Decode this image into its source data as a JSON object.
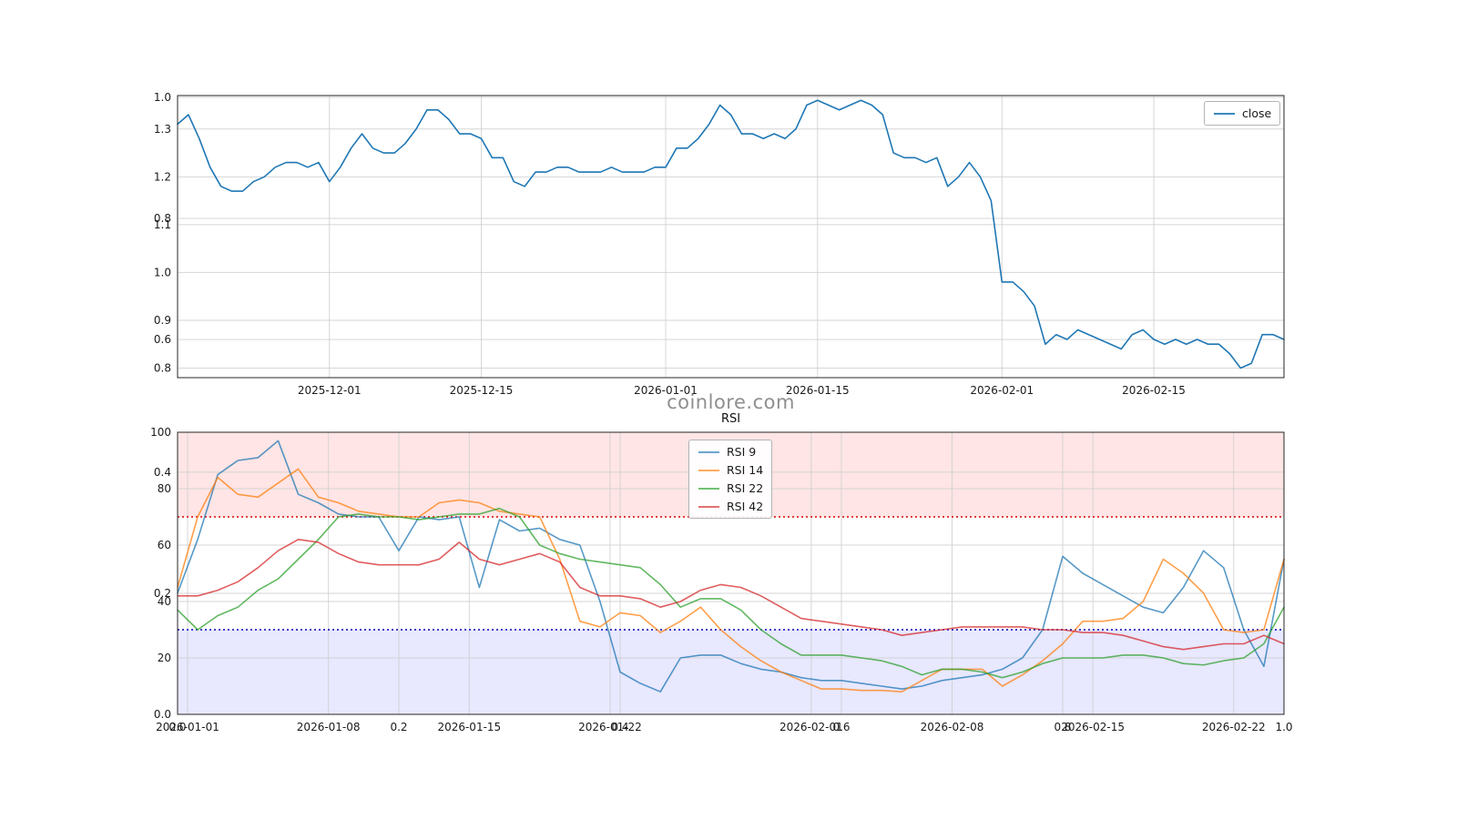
{
  "watermark": {
    "text": "coinlore.com",
    "color": "#8f8f8f"
  },
  "chart_data": [
    {
      "type": "line",
      "name": "price-chart",
      "title": "",
      "legend_position": "upper right",
      "x_start_date": "2025-11-17",
      "series": [
        {
          "name": "close",
          "color": "#1f77b4",
          "values": [
            1.31,
            1.33,
            1.28,
            1.22,
            1.18,
            1.17,
            1.17,
            1.19,
            1.2,
            1.22,
            1.23,
            1.23,
            1.22,
            1.23,
            1.19,
            1.22,
            1.26,
            1.29,
            1.26,
            1.25,
            1.25,
            1.27,
            1.3,
            1.34,
            1.34,
            1.32,
            1.29,
            1.29,
            1.28,
            1.24,
            1.24,
            1.19,
            1.18,
            1.21,
            1.21,
            1.22,
            1.22,
            1.21,
            1.21,
            1.21,
            1.22,
            1.21,
            1.21,
            1.21,
            1.22,
            1.22,
            1.26,
            1.26,
            1.28,
            1.31,
            1.35,
            1.33,
            1.29,
            1.29,
            1.28,
            1.29,
            1.28,
            1.3,
            1.35,
            1.36,
            1.35,
            1.34,
            1.35,
            1.36,
            1.35,
            1.33,
            1.25,
            1.24,
            1.24,
            1.23,
            1.24,
            1.18,
            1.2,
            1.23,
            1.2,
            1.15,
            0.98,
            0.98,
            0.96,
            0.93,
            0.85,
            0.87,
            0.86,
            0.88,
            0.87,
            0.86,
            0.85,
            0.84,
            0.87,
            0.88,
            0.86,
            0.85,
            0.86,
            0.85,
            0.86,
            0.85,
            0.85,
            0.83,
            0.8,
            0.81,
            0.87,
            0.87,
            0.86
          ]
        }
      ],
      "x_ticks": [
        {
          "i": 14,
          "label": "2025-12-01"
        },
        {
          "i": 28,
          "label": "2025-12-15"
        },
        {
          "i": 45,
          "label": "2026-01-01"
        },
        {
          "i": 59,
          "label": "2026-01-15"
        },
        {
          "i": 76,
          "label": "2026-02-01"
        },
        {
          "i": 90,
          "label": "2026-02-15"
        }
      ],
      "ylim": [
        0.78,
        1.37
      ],
      "y_ticks": [
        {
          "v": 1.3,
          "label": "1.3"
        },
        {
          "v": 1.2,
          "label": "1.2"
        },
        {
          "v": 1.1,
          "label": "1.1"
        },
        {
          "v": 1.0,
          "label": "1.0"
        },
        {
          "v": 0.9,
          "label": "0.9"
        },
        {
          "v": 0.8,
          "label": "0.8"
        }
      ],
      "y2lim": [
        0.537,
        1.003
      ],
      "y2_ticks": [
        {
          "v": 1.0,
          "label": "1.0"
        },
        {
          "v": 0.8,
          "label": "0.8"
        },
        {
          "v": 0.6,
          "label": "0.6"
        }
      ],
      "grid": true
    },
    {
      "type": "line",
      "name": "rsi-chart",
      "title": "RSI",
      "legend_position": "upper center",
      "x_start_date": "2026-01-01",
      "series": [
        {
          "name": "RSI 9",
          "color": "rgba(31,119,180,0.75)",
          "values": [
            43,
            62,
            85,
            90,
            91,
            97,
            78,
            75,
            71,
            70,
            70,
            58,
            70,
            69,
            70,
            45,
            69,
            65,
            66,
            62,
            60,
            40,
            15,
            11,
            8,
            20,
            21,
            21,
            18,
            16,
            15,
            13,
            12,
            12,
            11,
            10,
            9,
            10,
            12,
            13,
            14,
            16,
            20,
            30,
            56,
            50,
            46,
            42,
            38,
            36,
            45,
            58,
            52,
            30,
            17,
            55
          ]
        },
        {
          "name": "RSI 14",
          "color": "rgba(255,127,14,0.75)",
          "values": [
            45,
            70,
            84,
            78,
            77,
            82,
            87,
            77,
            75,
            72,
            71,
            70,
            70,
            75,
            76,
            75,
            72,
            71,
            70,
            55,
            33,
            31,
            36,
            35,
            29,
            33,
            38,
            30,
            24,
            19,
            15,
            12,
            9,
            9,
            8.5,
            8.5,
            8,
            12,
            16,
            16,
            16,
            10,
            14,
            19,
            25,
            33,
            33,
            34,
            40,
            55,
            50,
            43,
            30,
            29,
            30,
            55
          ]
        },
        {
          "name": "RSI 22",
          "color": "rgba(44,160,44,0.75)",
          "values": [
            37,
            30,
            35,
            38,
            44,
            48,
            55,
            62,
            70,
            71,
            70,
            70,
            69,
            70,
            71,
            71,
            73,
            70,
            60,
            57,
            55,
            54,
            53,
            52,
            46,
            38,
            41,
            41,
            37,
            30,
            25,
            21,
            21,
            21,
            20,
            19,
            17,
            14,
            16,
            16,
            15,
            13,
            15,
            18,
            20,
            20,
            20,
            21,
            21,
            20,
            18,
            17.5,
            19,
            20,
            25,
            38
          ]
        },
        {
          "name": "RSI 42",
          "color": "rgba(214,39,40,0.75)",
          "values": [
            42,
            42,
            44,
            47,
            52,
            58,
            62,
            61,
            57,
            54,
            53,
            53,
            53,
            55,
            61,
            55,
            53,
            55,
            57,
            54,
            45,
            42,
            42,
            41,
            38,
            40,
            44,
            46,
            45,
            42,
            38,
            34,
            33,
            32,
            31,
            30,
            28,
            29,
            30,
            31,
            31,
            31,
            31,
            30,
            30,
            29,
            29,
            28,
            26,
            24,
            23,
            24,
            25,
            25,
            28,
            25
          ]
        }
      ],
      "x_ticks": [
        {
          "i": 0.5,
          "label": "2026-01-01"
        },
        {
          "i": 7.5,
          "label": "2026-01-08"
        },
        {
          "i": 14.5,
          "label": "2026-01-15"
        },
        {
          "i": 21.5,
          "label": "2026-01-22"
        },
        {
          "i": 31.5,
          "label": "2026-02-01"
        },
        {
          "i": 38.5,
          "label": "2026-02-08"
        },
        {
          "i": 45.5,
          "label": "2026-02-15"
        },
        {
          "i": 52.5,
          "label": "2026-02-22"
        }
      ],
      "x2_ticks": [
        {
          "v": 0.0,
          "label": "0.0"
        },
        {
          "v": 0.2,
          "label": "0.2"
        },
        {
          "v": 0.4,
          "label": "0.4"
        },
        {
          "v": 0.6,
          "label": "0.6"
        },
        {
          "v": 0.8,
          "label": "0.8"
        },
        {
          "v": 1.0,
          "label": "1.0"
        }
      ],
      "ylim": [
        0,
        100
      ],
      "y_ticks": [
        {
          "v": 100,
          "label": "100"
        },
        {
          "v": 80,
          "label": "80"
        },
        {
          "v": 60,
          "label": "60"
        },
        {
          "v": 40,
          "label": "40"
        },
        {
          "v": 20,
          "label": "20"
        }
      ],
      "y2lim": [
        0,
        0.466
      ],
      "y2_ticks": [
        {
          "v": 0.4,
          "label": "0.4"
        },
        {
          "v": 0.2,
          "label": "0.2"
        },
        {
          "v": 0.0,
          "label": "0.0"
        }
      ],
      "bands": [
        {
          "from": 70,
          "to": 100,
          "color": "rgba(255,0,0,0.10)"
        },
        {
          "from": 0,
          "to": 30,
          "color": "rgba(0,0,255,0.09)"
        }
      ],
      "hlines": [
        {
          "v": 70,
          "color": "#dd0000",
          "style": "dotted"
        },
        {
          "v": 30,
          "color": "#0000bb",
          "style": "dotted"
        }
      ],
      "grid": true
    }
  ]
}
